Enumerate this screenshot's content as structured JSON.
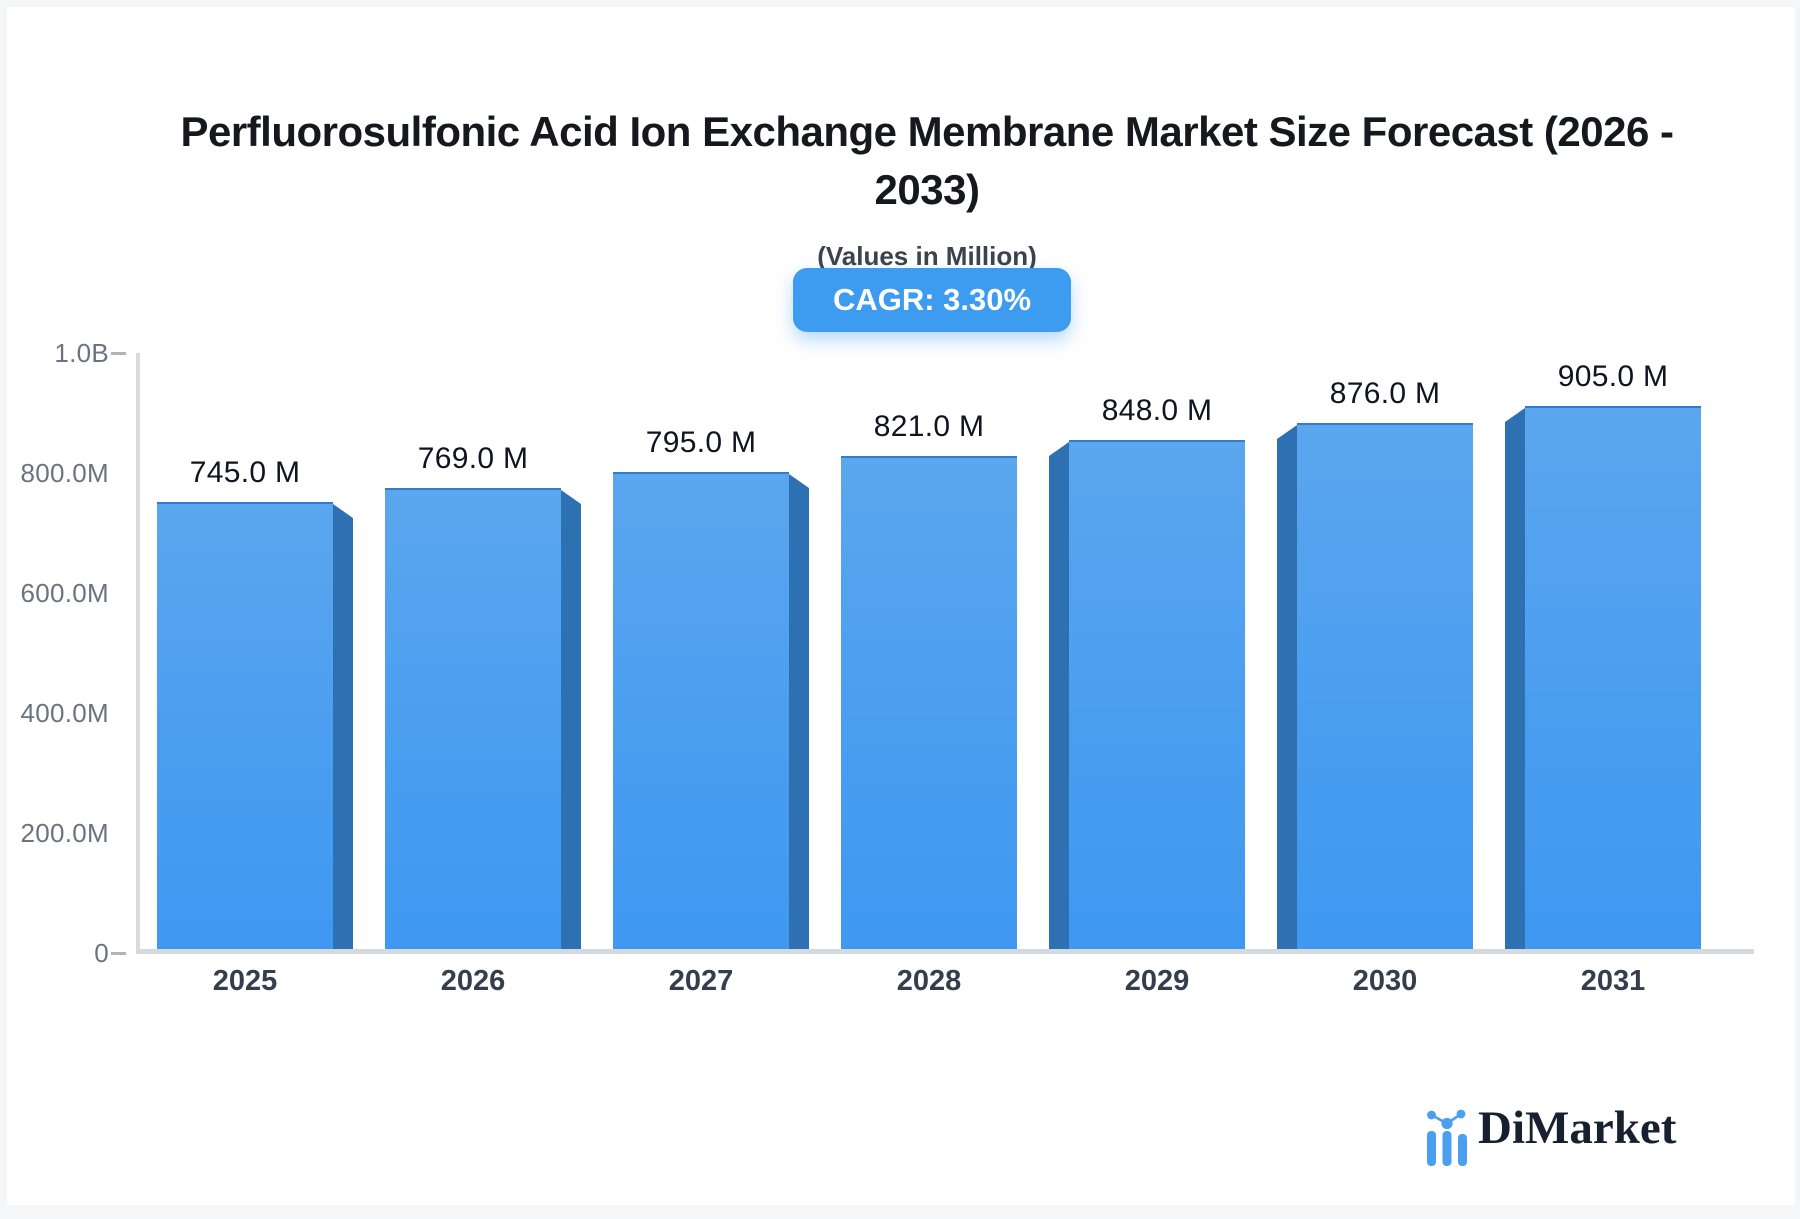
{
  "header": {
    "title": "Perfluorosulfonic Acid Ion Exchange Membrane Market Size Forecast (2026 - 2033)",
    "subtitle": "(Values in Million)",
    "cagr_badge": "CAGR: 3.30%"
  },
  "chart_data": {
    "type": "bar",
    "title": "Perfluorosulfonic Acid Ion Exchange Membrane Market Size Forecast (2026 - 2033)",
    "subtitle": "(Values in Million)",
    "annotation": "CAGR: 3.30%",
    "categories": [
      "2025",
      "2026",
      "2027",
      "2028",
      "2029",
      "2030",
      "2031"
    ],
    "values": [
      745,
      769,
      795,
      821,
      848,
      876,
      905
    ],
    "value_labels": [
      "745.0 M",
      "769.0 M",
      "795.0 M",
      "821.0 M",
      "848.0 M",
      "876.0 M",
      "905.0 M"
    ],
    "xlabel": "",
    "ylabel": "",
    "ylim": [
      0,
      1000
    ],
    "y_tick_values": [
      0,
      200,
      400,
      600,
      800,
      1000
    ],
    "y_tick_labels": [
      "0",
      "200.0M",
      "400.0M",
      "600.0M",
      "800.0M",
      "1.0B"
    ],
    "grid": false,
    "legend": false,
    "bar_color_top": "#5ba6ee",
    "bar_color_bottom": "#3f98f1",
    "bar_side_color": "#2d71b2"
  },
  "colors": {
    "accent_blue": "#3d9bf0",
    "axis_gray": "#d7dbe0",
    "label_gray": "#6b7380",
    "text_dark": "#15181d"
  },
  "footer": {
    "logo_text": "DiMarket"
  }
}
